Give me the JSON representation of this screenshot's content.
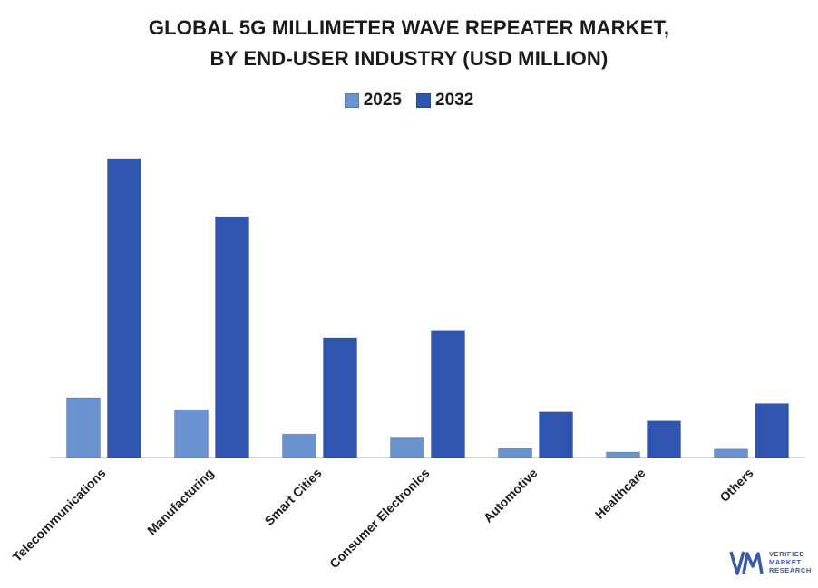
{
  "title_line1": "GLOBAL 5G MILLIMETER WAVE REPEATER MARKET,",
  "title_line2": "BY END-USER INDUSTRY (USD MILLION)",
  "legend": [
    {
      "label": "2025",
      "color": "#6a93d0"
    },
    {
      "label": "2032",
      "color": "#2f55b0"
    }
  ],
  "chart_data": {
    "type": "bar",
    "title": "GLOBAL 5G MILLIMETER WAVE REPEATER MARKET, BY END-USER INDUSTRY (USD MILLION)",
    "xlabel": "",
    "ylabel": "",
    "ylim": [
      0,
      100
    ],
    "categories": [
      "Telecommunications",
      "Manufacturing",
      "Smart Cities",
      "Consumer Electronics",
      "Automotive",
      "Healthcare",
      "Others"
    ],
    "series": [
      {
        "name": "2025",
        "values": [
          20,
          16,
          7.8,
          6.8,
          3,
          1.8,
          2.8
        ],
        "color": "#6a93d0"
      },
      {
        "name": "2032",
        "values": [
          100,
          80.5,
          40,
          42.5,
          15.2,
          12.2,
          18
        ]
      }
    ]
  },
  "logo": {
    "line1": "VERIFIED",
    "line2": "MARKET",
    "line3": "RESEARCH",
    "mark": "VMR"
  }
}
